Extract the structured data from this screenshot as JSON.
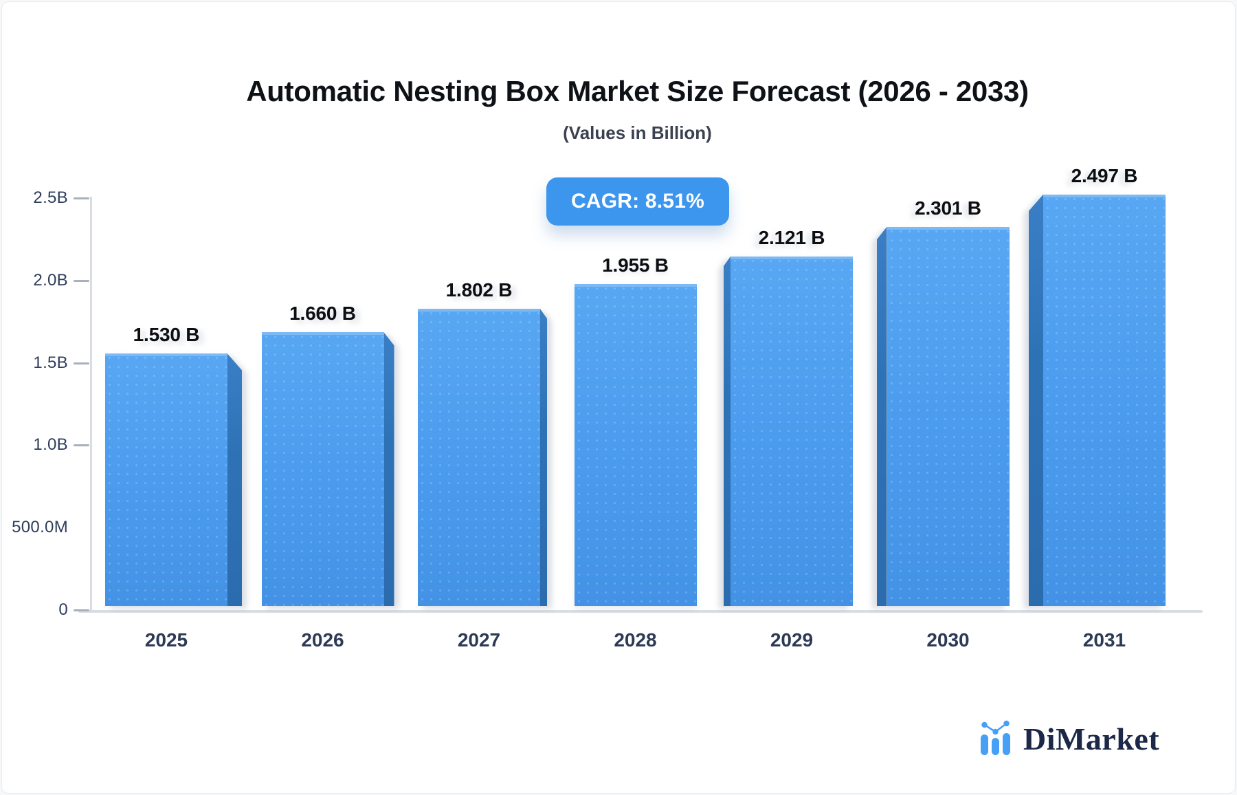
{
  "header": {
    "title": "Automatic Nesting Box Market Size Forecast (2026 - 2033)",
    "subtitle": "(Values in Billion)"
  },
  "badge": {
    "label": "CAGR: 8.51%"
  },
  "chart_data": {
    "type": "bar",
    "title": "Automatic Nesting Box Market Size Forecast (2026 - 2033)",
    "subtitle": "(Values in Billion)",
    "cagr_pct": 8.51,
    "categories": [
      "2025",
      "2026",
      "2027",
      "2028",
      "2029",
      "2030",
      "2031"
    ],
    "values_billion": [
      1.53,
      1.66,
      1.802,
      1.955,
      2.121,
      2.301,
      2.497
    ],
    "bar_labels": [
      "1.530 B",
      "1.660 B",
      "1.802 B",
      "1.955 B",
      "2.121 B",
      "2.301 B",
      "2.497 B"
    ],
    "xlabel": "",
    "ylabel": "",
    "ylim_billion": [
      0,
      2.5
    ],
    "y_ticks": [
      {
        "value": 0,
        "label": "0",
        "dash": true
      },
      {
        "value": 0.5,
        "label": "500.0M",
        "dash": false
      },
      {
        "value": 1.0,
        "label": "1.0B",
        "dash": true
      },
      {
        "value": 1.5,
        "label": "1.5B",
        "dash": true
      },
      {
        "value": 2.0,
        "label": "2.0B",
        "dash": true
      },
      {
        "value": 2.5,
        "label": "2.5B",
        "dash": true
      }
    ],
    "grid": false,
    "legend": "none",
    "colors": {
      "bar_face": "#4d9ef0",
      "bar_side": "#2e72b6",
      "badge": "#3d96ee",
      "axis": "#d9dce2"
    }
  },
  "brand": {
    "name": "DiMarket",
    "icon": "mini-bar-chart-logo-icon",
    "accent": "#47a0f5"
  }
}
